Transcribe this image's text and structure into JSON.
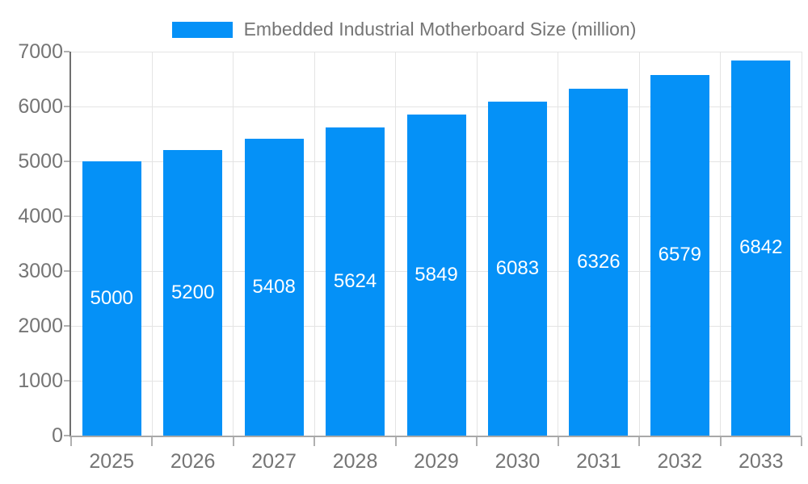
{
  "chart_data": {
    "type": "bar",
    "title": "Embedded Industrial Motherboard Size (million)",
    "categories": [
      "2025",
      "2026",
      "2027",
      "2028",
      "2029",
      "2030",
      "2031",
      "2032",
      "2033"
    ],
    "values": [
      5000,
      5200,
      5408,
      5624,
      5849,
      6083,
      6326,
      6579,
      6842
    ],
    "xlabel": "",
    "ylabel": "",
    "ylim": [
      0,
      7000
    ],
    "yticks": [
      0,
      1000,
      2000,
      3000,
      4000,
      5000,
      6000,
      7000
    ],
    "grid": true,
    "legend_position": "top-center",
    "value_label_position": "inside-middle"
  },
  "colors": {
    "bar": "#0591f7",
    "grid_line": "#e4e4e4",
    "axis_line_y": "#6f6f6f",
    "axis_line_x": "#a8a8a8",
    "tick": "#b0b0b0",
    "axis_text": "#757575",
    "value_label_text": "#ffffff",
    "background": "#ffffff"
  }
}
